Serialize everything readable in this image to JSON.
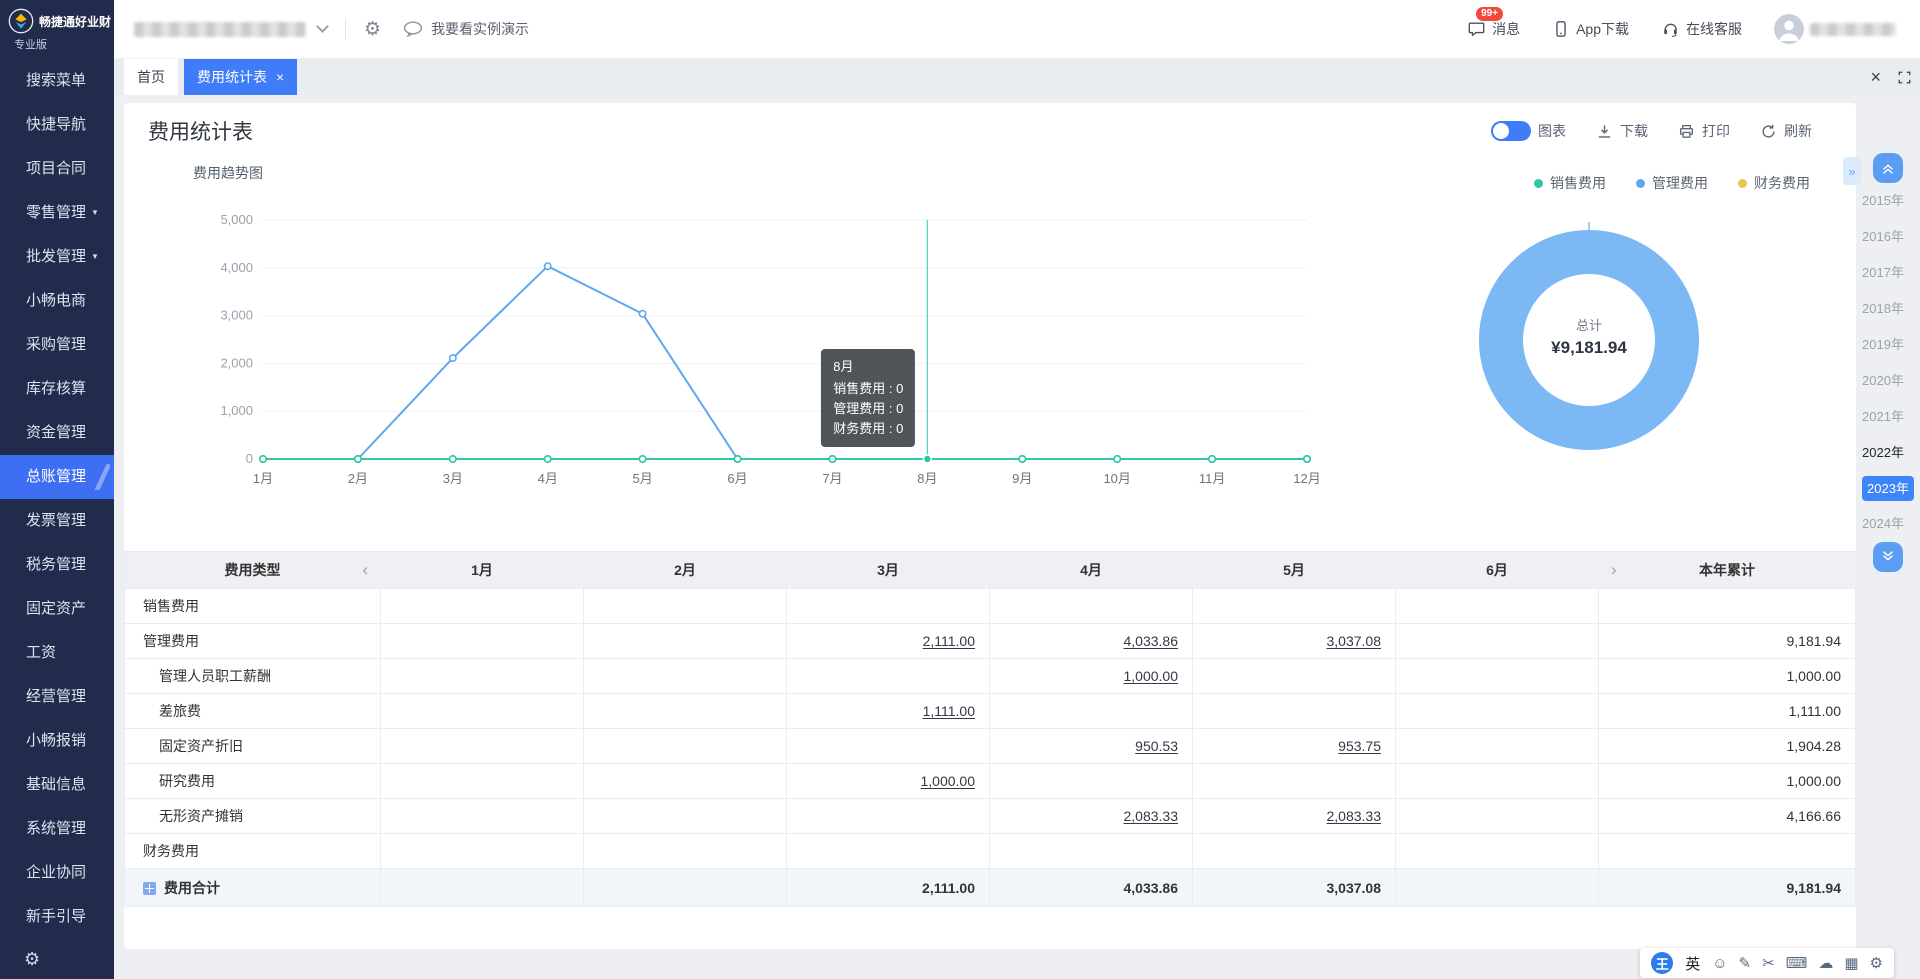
{
  "topbar": {
    "logo_title": "畅捷通好业财",
    "logo_badge": "专业版",
    "demo_label": "我要看实例演示",
    "message_label": "消息",
    "message_badge": "99+",
    "app_download_label": "App下载",
    "service_label": "在线客服"
  },
  "sidebar": {
    "items": [
      {
        "id": "search-menu",
        "label": "搜索菜单"
      },
      {
        "id": "quick-nav",
        "label": "快捷导航"
      },
      {
        "id": "project-contract",
        "label": "项目合同"
      },
      {
        "id": "retail",
        "label": "零售管理",
        "arrow": true
      },
      {
        "id": "wholesale",
        "label": "批发管理",
        "arrow": true
      },
      {
        "id": "xiaochang-ecommerce",
        "label": "小畅电商"
      },
      {
        "id": "purchase",
        "label": "采购管理"
      },
      {
        "id": "inventory-accounting",
        "label": "库存核算"
      },
      {
        "id": "funds",
        "label": "资金管理"
      },
      {
        "id": "general-ledger",
        "label": "总账管理",
        "active": true
      },
      {
        "id": "invoice",
        "label": "发票管理"
      },
      {
        "id": "tax",
        "label": "税务管理"
      },
      {
        "id": "fixed-assets",
        "label": "固定资产"
      },
      {
        "id": "salary",
        "label": "工资"
      },
      {
        "id": "operations",
        "label": "经营管理"
      },
      {
        "id": "reimbursement",
        "label": "小畅报销"
      },
      {
        "id": "basic-info",
        "label": "基础信息"
      },
      {
        "id": "system",
        "label": "系统管理"
      },
      {
        "id": "collaboration",
        "label": "企业协同"
      },
      {
        "id": "onboarding",
        "label": "新手引导"
      }
    ]
  },
  "tabs": [
    {
      "label": "首页",
      "active": false
    },
    {
      "label": "费用统计表",
      "active": true,
      "closable": true
    }
  ],
  "page": {
    "title": "费用统计表",
    "toolbar": {
      "chart_toggle_label": "图表",
      "download_label": "下载",
      "print_label": "打印",
      "refresh_label": "刷新"
    }
  },
  "chart_data": [
    {
      "type": "line",
      "title": "费用趋势图",
      "categories": [
        "1月",
        "2月",
        "3月",
        "4月",
        "5月",
        "6月",
        "7月",
        "8月",
        "9月",
        "10月",
        "11月",
        "12月"
      ],
      "series": [
        {
          "name": "销售费用",
          "color": "#2fc8a7",
          "values": [
            0,
            0,
            0,
            0,
            0,
            0,
            0,
            0,
            0,
            0,
            0,
            0
          ]
        },
        {
          "name": "管理费用",
          "color": "#5ea8ef",
          "values": [
            null,
            0,
            2111.0,
            4033.86,
            3037.08,
            0,
            0,
            0,
            0,
            0,
            0,
            0
          ]
        },
        {
          "name": "财务费用",
          "color": "#e9c653",
          "values": [
            0,
            0,
            0,
            0,
            0,
            0,
            0,
            0,
            0,
            0,
            0,
            0
          ]
        }
      ],
      "ylim": [
        0,
        5000
      ],
      "yticks": [
        "0",
        "1,000",
        "2,000",
        "3,000",
        "4,000",
        "5,000"
      ],
      "grid": true,
      "legend_position": "top-right",
      "tooltip": {
        "index": 7,
        "month": "8月",
        "lines": [
          "销售费用 : 0",
          "管理费用 : 0",
          "财务费用 : 0"
        ]
      }
    },
    {
      "type": "pie",
      "label": "总计",
      "value": "¥9,181.94",
      "slices": [
        {
          "name": "管理费用",
          "value": 9181.94,
          "color": "#7cb8f4"
        }
      ]
    }
  ],
  "years": {
    "items": [
      "2015年",
      "2016年",
      "2017年",
      "2018年",
      "2019年",
      "2020年",
      "2021年",
      "2022年",
      "2023年",
      "2024年"
    ],
    "active": "2023年",
    "emphasis": "2022年"
  },
  "table": {
    "col_type": "费用类型",
    "col_total": "本年累计",
    "months": [
      "1月",
      "2月",
      "3月",
      "4月",
      "5月",
      "6月"
    ],
    "rows": [
      {
        "name": "销售费用",
        "indent": 0,
        "cells": [
          "",
          "",
          "",
          "",
          "",
          ""
        ],
        "total": ""
      },
      {
        "name": "管理费用",
        "indent": 0,
        "cells": [
          "",
          "",
          "2,111.00",
          "4,033.86",
          "3,037.08",
          ""
        ],
        "total": "9,181.94"
      },
      {
        "name": "管理人员职工薪酬",
        "indent": 1,
        "cells": [
          "",
          "",
          "",
          "1,000.00",
          "",
          ""
        ],
        "total": "1,000.00"
      },
      {
        "name": "差旅费",
        "indent": 1,
        "cells": [
          "",
          "",
          "1,111.00",
          "",
          "",
          ""
        ],
        "total": "1,111.00"
      },
      {
        "name": "固定资产折旧",
        "indent": 1,
        "cells": [
          "",
          "",
          "",
          "950.53",
          "953.75",
          ""
        ],
        "total": "1,904.28"
      },
      {
        "name": "研究费用",
        "indent": 1,
        "cells": [
          "",
          "",
          "1,000.00",
          "",
          "",
          ""
        ],
        "total": "1,000.00"
      },
      {
        "name": "无形资产摊销",
        "indent": 1,
        "cells": [
          "",
          "",
          "",
          "2,083.33",
          "2,083.33",
          ""
        ],
        "total": "4,166.66"
      },
      {
        "name": "财务费用",
        "indent": 0,
        "cells": [
          "",
          "",
          "",
          "",
          "",
          ""
        ],
        "total": ""
      }
    ],
    "total_row": {
      "name": "费用合计",
      "cells": [
        "",
        "",
        "2,111.00",
        "4,033.86",
        "3,037.08",
        ""
      ],
      "total": "9,181.94"
    }
  },
  "ime": {
    "brand": "王",
    "lang": "英",
    "icons": [
      {
        "name": "emoji-icon",
        "glyph": "☺"
      },
      {
        "name": "handwriting-icon",
        "glyph": "✎"
      },
      {
        "name": "scissors-icon",
        "glyph": "✂"
      },
      {
        "name": "keyboard-icon",
        "glyph": "⌨"
      },
      {
        "name": "cloud-icon",
        "glyph": "☁"
      },
      {
        "name": "toolbox-icon",
        "glyph": "▦"
      },
      {
        "name": "settings-icon",
        "glyph": "⚙"
      }
    ]
  }
}
